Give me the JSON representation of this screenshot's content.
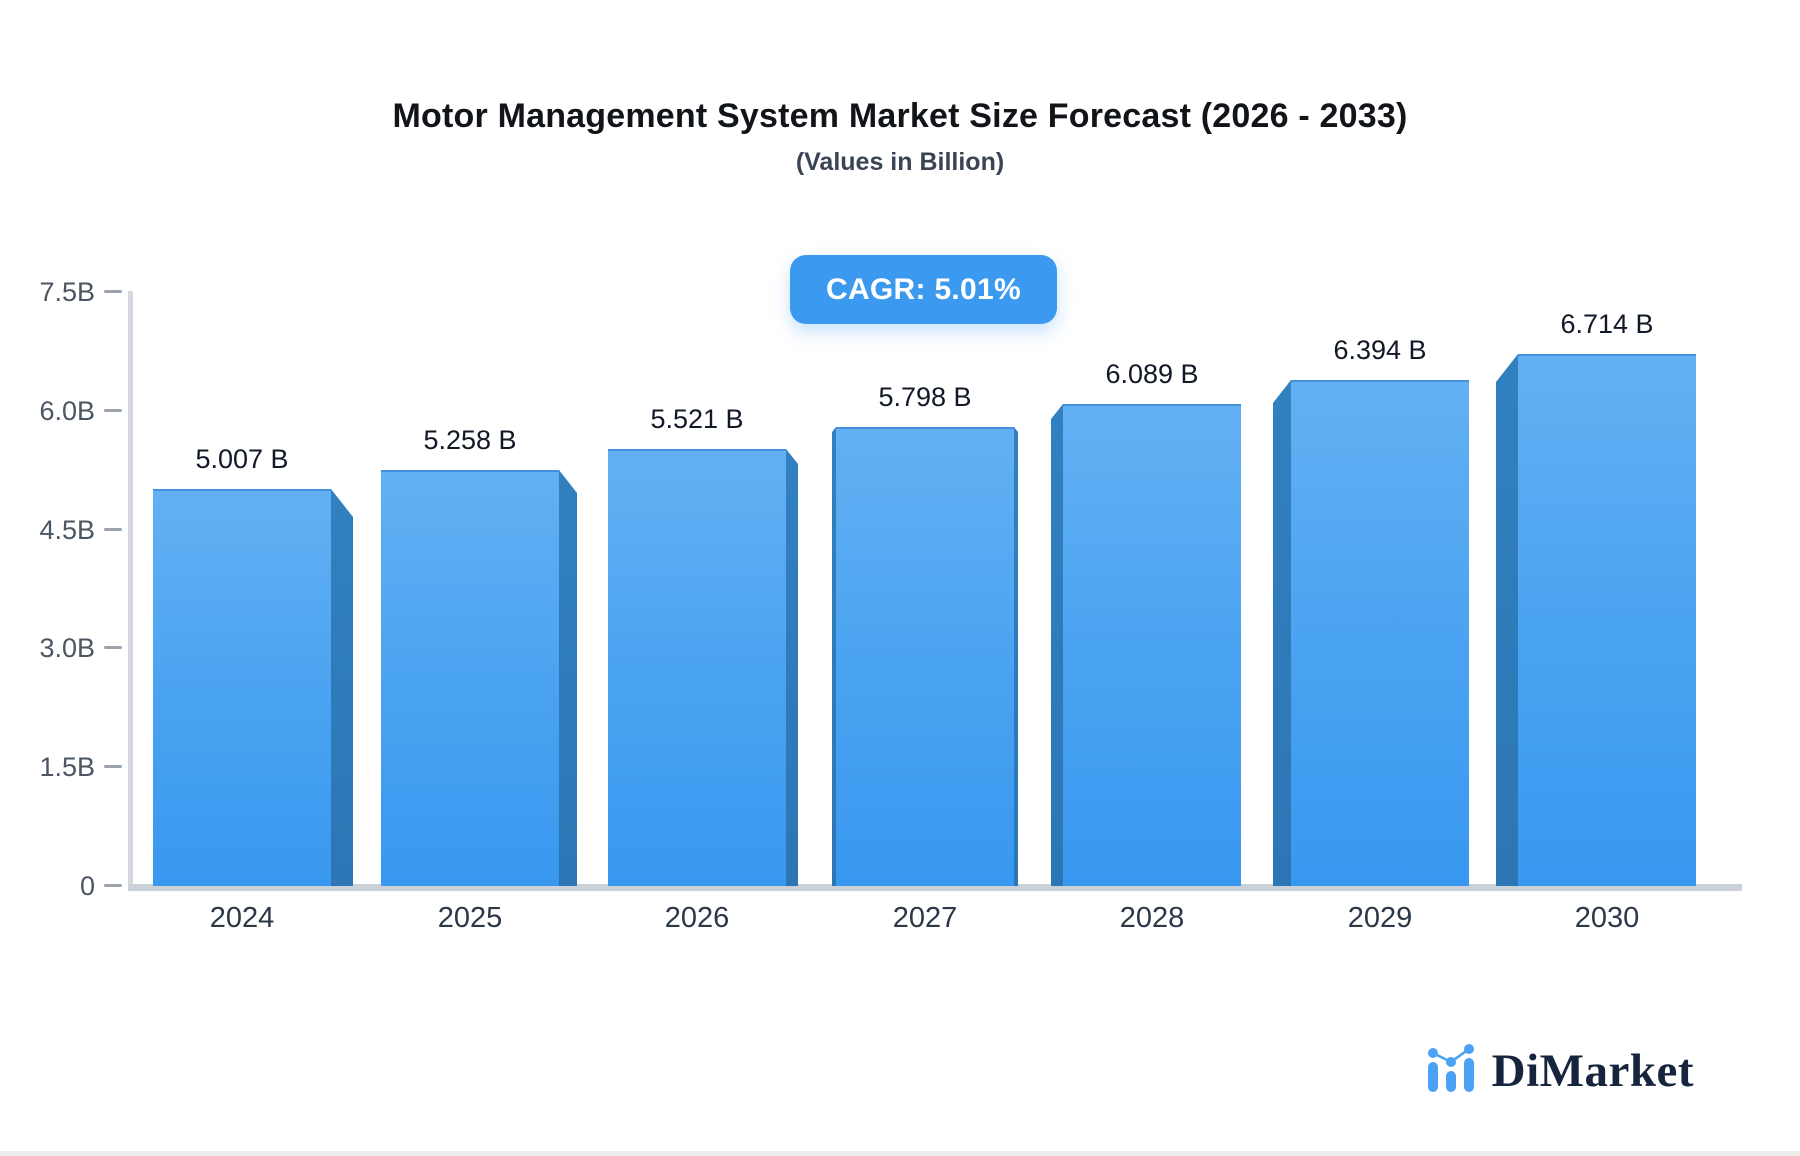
{
  "title": "Motor Management System Market Size Forecast (2026 - 2033)",
  "subtitle": "(Values in Billion)",
  "badge": {
    "label": "CAGR: 5.01%"
  },
  "chart_data": {
    "type": "bar",
    "title": "Motor Management System Market Size Forecast (2026 - 2033)",
    "subtitle": "(Values in Billion)",
    "cagr": "5.01%",
    "categories": [
      "2024",
      "2025",
      "2026",
      "2027",
      "2028",
      "2029",
      "2030"
    ],
    "values": [
      5.007,
      5.258,
      5.521,
      5.798,
      6.089,
      6.394,
      6.714
    ],
    "value_labels": [
      "5.007 B",
      "5.258 B",
      "5.521 B",
      "5.798 B",
      "6.089 B",
      "6.394 B",
      "6.714 B"
    ],
    "xlabel": "",
    "ylabel": "",
    "ylim": [
      0,
      7.5
    ],
    "yticks": [
      {
        "label": "0",
        "value": 0
      },
      {
        "label": "1.5B",
        "value": 1.5
      },
      {
        "label": "3.0B",
        "value": 3.0
      },
      {
        "label": "4.5B",
        "value": 4.5
      },
      {
        "label": "6.0B",
        "value": 6.0
      },
      {
        "label": "7.5B",
        "value": 7.5
      }
    ],
    "grid": false,
    "legend": false,
    "bar_color": "#3f9ff0",
    "bar_side_color": "#2d76b5",
    "style": "3d-perspective-bars"
  },
  "logo": {
    "text": "DiMarket",
    "icon": "bar-chart-logo-icon",
    "icon_color": "#4aa2f5",
    "text_color": "#17243e"
  },
  "colors": {
    "badge_bg": "#3b99f0",
    "axis_line": "#ccd1d8",
    "tick": "#9aa3ae",
    "y_label": "#4b5563",
    "x_label": "#2c3848",
    "value_label": "#111827",
    "background": "#ffffff"
  }
}
